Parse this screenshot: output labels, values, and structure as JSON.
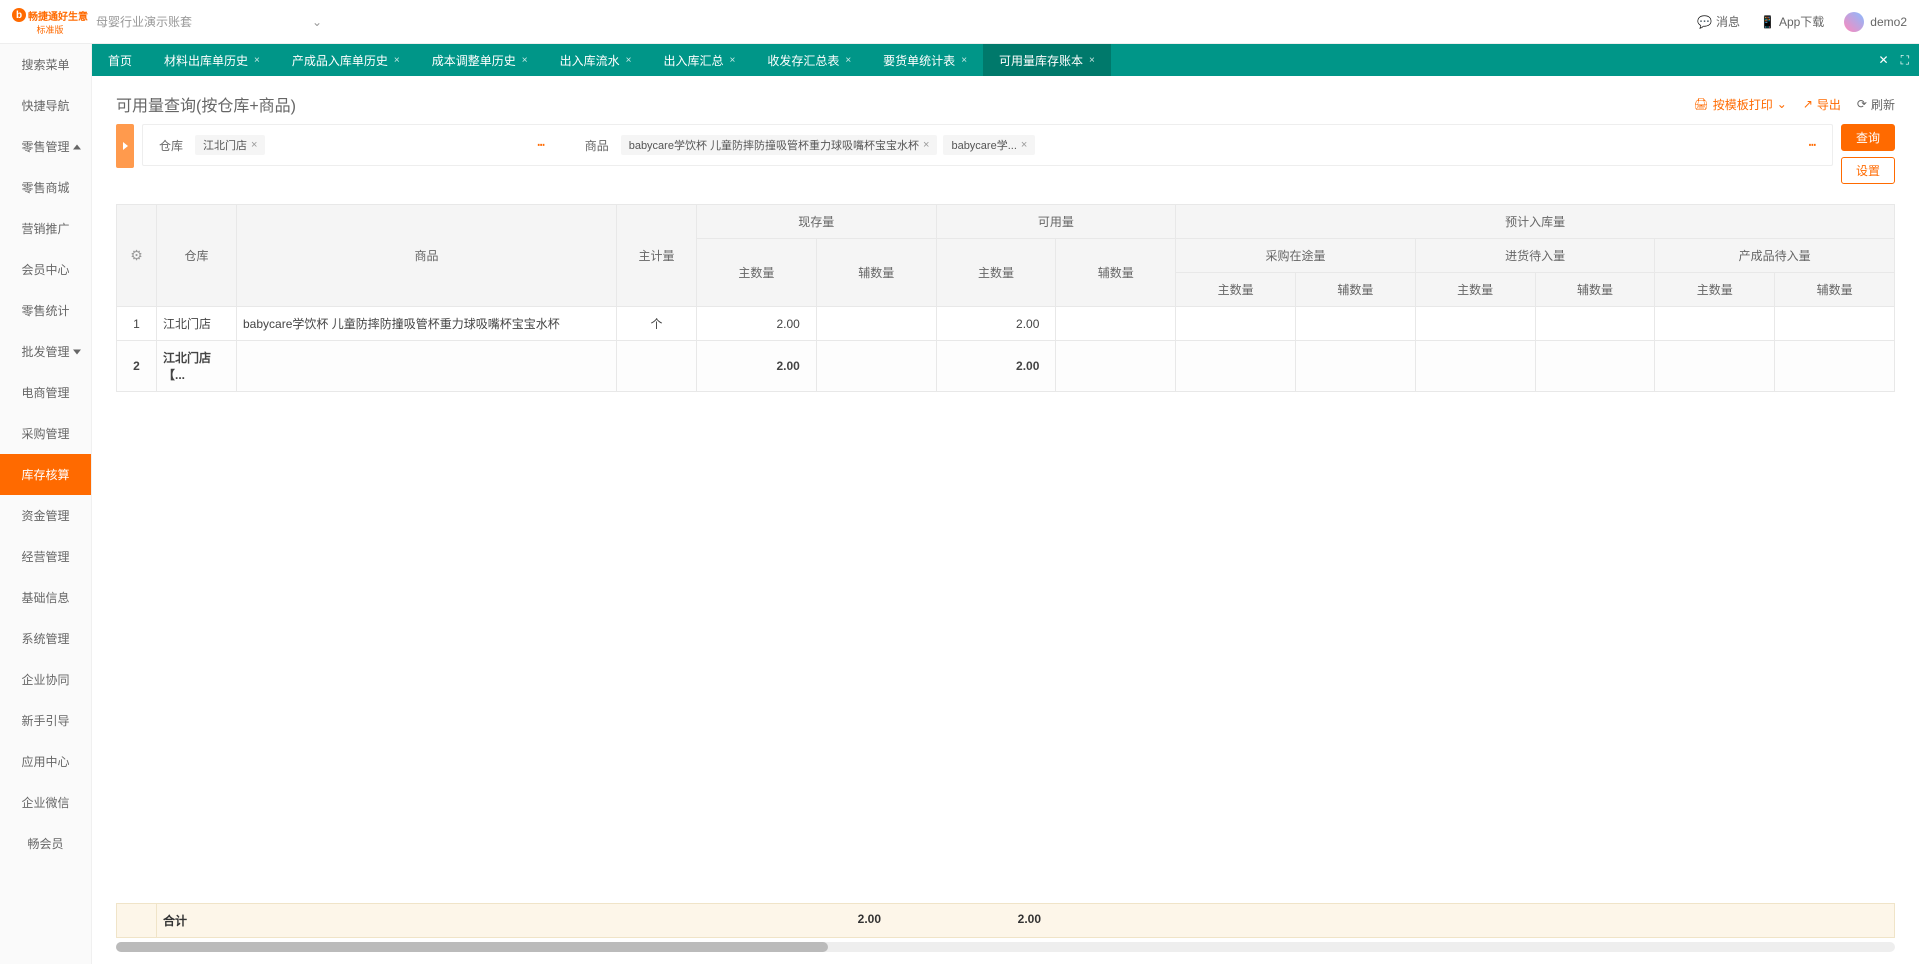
{
  "header": {
    "brand": "畅捷通好生意",
    "version": "标准版",
    "account_set": "母婴行业演示账套",
    "messages": "消息",
    "app_download": "App下载",
    "username": "demo2"
  },
  "sidebar": [
    {
      "label": "搜索菜单",
      "type": "item"
    },
    {
      "label": "快捷导航",
      "type": "item"
    },
    {
      "label": "零售管理",
      "type": "group",
      "arrow": "expand"
    },
    {
      "label": "零售商城",
      "type": "sub"
    },
    {
      "label": "营销推广",
      "type": "sub"
    },
    {
      "label": "会员中心",
      "type": "sub"
    },
    {
      "label": "零售统计",
      "type": "sub"
    },
    {
      "label": "批发管理",
      "type": "group",
      "arrow": "collapse"
    },
    {
      "label": "电商管理",
      "type": "item"
    },
    {
      "label": "采购管理",
      "type": "item"
    },
    {
      "label": "库存核算",
      "type": "item",
      "active": true
    },
    {
      "label": "资金管理",
      "type": "item"
    },
    {
      "label": "经营管理",
      "type": "item"
    },
    {
      "label": "基础信息",
      "type": "item"
    },
    {
      "label": "系统管理",
      "type": "item"
    },
    {
      "label": "企业协同",
      "type": "item"
    },
    {
      "label": "新手引导",
      "type": "item"
    },
    {
      "label": "应用中心",
      "type": "item"
    },
    {
      "label": "企业微信",
      "type": "item"
    },
    {
      "label": "畅会员",
      "type": "item"
    }
  ],
  "tabs": [
    {
      "label": "首页",
      "closable": false
    },
    {
      "label": "材料出库单历史",
      "closable": true
    },
    {
      "label": "产成品入库单历史",
      "closable": true
    },
    {
      "label": "成本调整单历史",
      "closable": true
    },
    {
      "label": "出入库流水",
      "closable": true
    },
    {
      "label": "出入库汇总",
      "closable": true
    },
    {
      "label": "收发存汇总表",
      "closable": true
    },
    {
      "label": "要货单统计表",
      "closable": true
    },
    {
      "label": "可用量库存账本",
      "closable": true,
      "active": true
    }
  ],
  "page": {
    "title": "可用量查询(按仓库+商品)",
    "actions": {
      "print": "按模板打印",
      "export": "导出",
      "refresh": "刷新"
    }
  },
  "filters": {
    "warehouse_label": "仓库",
    "warehouse_tag": "江北门店",
    "product_label": "商品",
    "product_tags": [
      "babycare学饮杯 儿童防摔防撞吸管杯重力球吸嘴杯宝宝水杯",
      "babycare学..."
    ],
    "query_btn": "查询",
    "settings_btn": "设置"
  },
  "table": {
    "headers": {
      "idx": "",
      "warehouse": "仓库",
      "product": "商品",
      "main_unit": "主计量",
      "onhand": "现存量",
      "available": "可用量",
      "expected_in": "预计入库量",
      "onhand_main": "主数量",
      "onhand_aux": "辅数量",
      "avail_main": "主数量",
      "avail_aux": "辅数量",
      "purchase_transit": "采购在途量",
      "receive_pending": "进货待入量",
      "finished_pending": "产成品待入量",
      "main_qty": "主数量",
      "aux_qty": "辅数量"
    },
    "rows": [
      {
        "idx": "1",
        "warehouse": "江北门店",
        "product": "babycare学饮杯 儿童防摔防撞吸管杯重力球吸嘴杯宝宝水杯",
        "unit": "个",
        "onhand_main": "2.00",
        "avail_main": "2.00"
      },
      {
        "idx": "2",
        "warehouse": "江北门店【...",
        "product": "",
        "unit": "",
        "onhand_main": "2.00",
        "avail_main": "2.00",
        "subtotal": true
      }
    ],
    "footer": {
      "label": "合计",
      "onhand_main": "2.00",
      "avail_main": "2.00"
    }
  }
}
